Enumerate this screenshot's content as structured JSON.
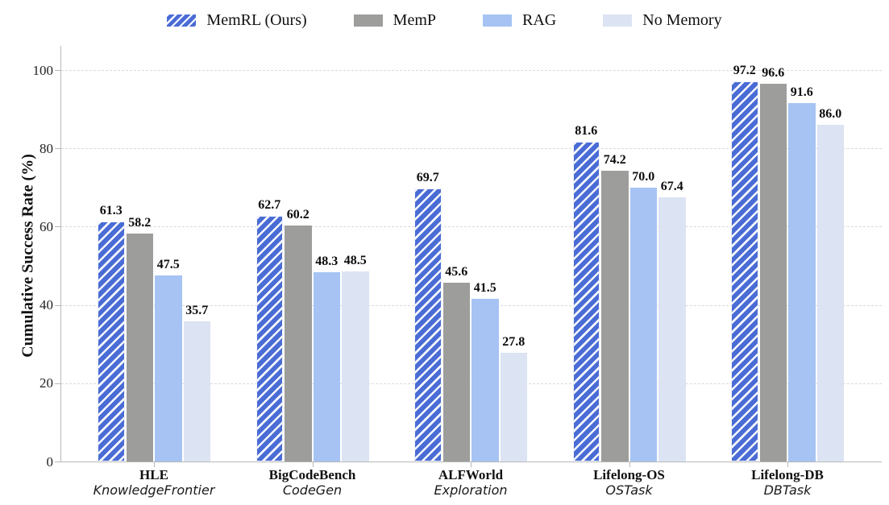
{
  "chart_data": {
    "type": "bar",
    "title": "",
    "ylabel": "Cumulative Success Rate (%)",
    "xlabel": "",
    "ylim": [
      0,
      105
    ],
    "yticks": [
      0,
      20,
      40,
      60,
      80,
      100
    ],
    "grid": "horizontal dashed at 20,40,60,80,100",
    "legend_position": "top-center",
    "value_label_decimals": 1,
    "categories": [
      {
        "label": "HLE",
        "sublabel": "KnowledgeFrontier"
      },
      {
        "label": "BigCodeBench",
        "sublabel": "CodeGen"
      },
      {
        "label": "ALFWorld",
        "sublabel": "Exploration"
      },
      {
        "label": "Lifelong-OS",
        "sublabel": "OSTask"
      },
      {
        "label": "Lifelong-DB",
        "sublabel": "DBTask"
      }
    ],
    "series": [
      {
        "name": "MemRL (Ours)",
        "color": "#4a6cd5",
        "hatch": true,
        "values": [
          61.3,
          62.7,
          69.7,
          81.6,
          97.2
        ]
      },
      {
        "name": "MemP",
        "color": "#9d9d9b",
        "hatch": false,
        "values": [
          58.2,
          60.2,
          45.6,
          74.2,
          96.6
        ]
      },
      {
        "name": "RAG",
        "color": "#a6c3f3",
        "hatch": false,
        "values": [
          47.5,
          48.3,
          41.5,
          70.0,
          91.6
        ]
      },
      {
        "name": "No Memory",
        "color": "#dce3f3",
        "hatch": false,
        "values": [
          35.7,
          48.5,
          27.8,
          67.4,
          86.0
        ]
      }
    ]
  },
  "colors": {
    "gridline": "#d9d9d9",
    "spine": "#b9b9b9",
    "text": "#111111"
  }
}
